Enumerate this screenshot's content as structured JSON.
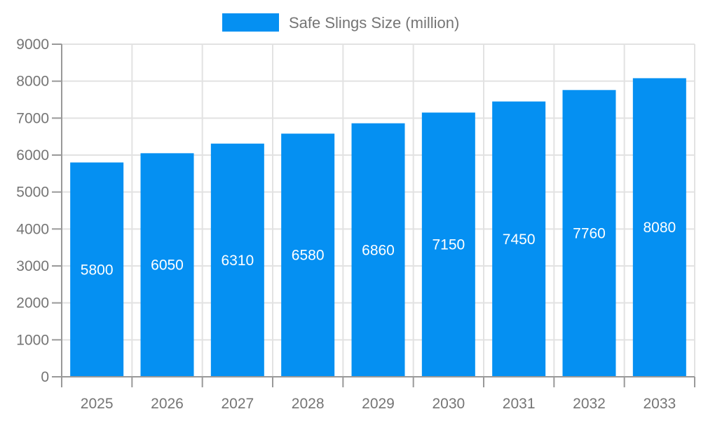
{
  "legend": {
    "label": "Safe Slings Size (million)",
    "swatch_color": "#0590f2"
  },
  "colors": {
    "bar": "#0590f2",
    "grid": "#e2e2e2",
    "axis": "#999999",
    "tick": "#999999",
    "text": "#757575",
    "value_label": "#ffffff",
    "background": "#ffffff"
  },
  "chart_data": {
    "type": "bar",
    "title": "Safe Slings Size (million)",
    "series": [
      {
        "name": "Safe Slings Size (million)",
        "values": [
          5800,
          6050,
          6310,
          6580,
          6860,
          7150,
          7450,
          7760,
          8080
        ]
      }
    ],
    "categories": [
      "2025",
      "2026",
      "2027",
      "2028",
      "2029",
      "2030",
      "2031",
      "2032",
      "2033"
    ],
    "xlabel": "",
    "ylabel": "",
    "ylim": [
      0,
      9000
    ],
    "ytick_step": 1000,
    "yticks": [
      0,
      1000,
      2000,
      3000,
      4000,
      5000,
      6000,
      7000,
      8000,
      9000
    ],
    "grid": true,
    "legend_position": "top",
    "value_labels": "inside-middle"
  }
}
